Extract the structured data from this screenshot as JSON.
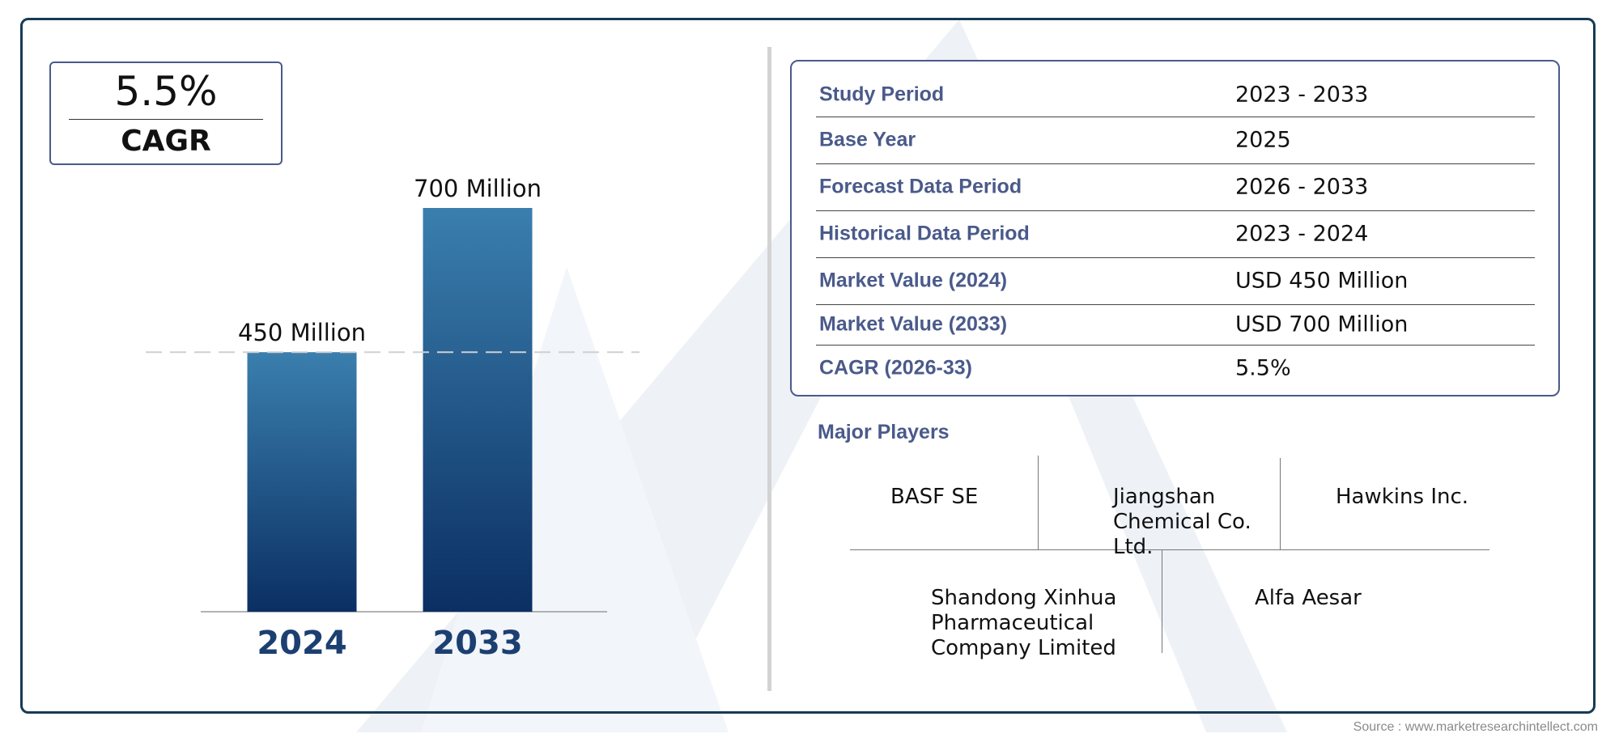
{
  "colors": {
    "frame": "#163b55",
    "bar_top": "#3a7fae",
    "bar_bottom": "#0b2f63",
    "accent_label": "#4a5a8a",
    "year_label": "#1c3f72",
    "watermark": "#eef2f7"
  },
  "cagr_badge": {
    "value": "5.5%",
    "label": "CAGR"
  },
  "chart_data": {
    "type": "bar",
    "categories": [
      "2024",
      "2033"
    ],
    "values": [
      450,
      700
    ],
    "data_labels": [
      "450 Million",
      "700 Million"
    ],
    "reference_line": 450,
    "title": "",
    "xlabel": "",
    "ylabel": "",
    "ylim": [
      0,
      700
    ],
    "grid": false
  },
  "info_table": [
    {
      "label": "Study Period",
      "value": "2023 - 2033"
    },
    {
      "label": "Base Year",
      "value": "2025"
    },
    {
      "label": "Forecast Data Period",
      "value": "2026 - 2033"
    },
    {
      "label": "Historical Data Period",
      "value": "2023 - 2024"
    },
    {
      "label": "Market Value (2024)",
      "value": "USD 450 Million"
    },
    {
      "label": "Market Value (2033)",
      "value": "USD 700 Million"
    },
    {
      "label": "CAGR (2026-33)",
      "value": "5.5%"
    }
  ],
  "major_players": {
    "title": "Major Players",
    "players": [
      "BASF SE",
      "Jiangshan Chemical Co. Ltd.",
      "Hawkins Inc.",
      "Shandong Xinhua Pharmaceutical Company Limited",
      "Alfa Aesar"
    ]
  },
  "source": "Source : www.marketresearchintellect.com"
}
